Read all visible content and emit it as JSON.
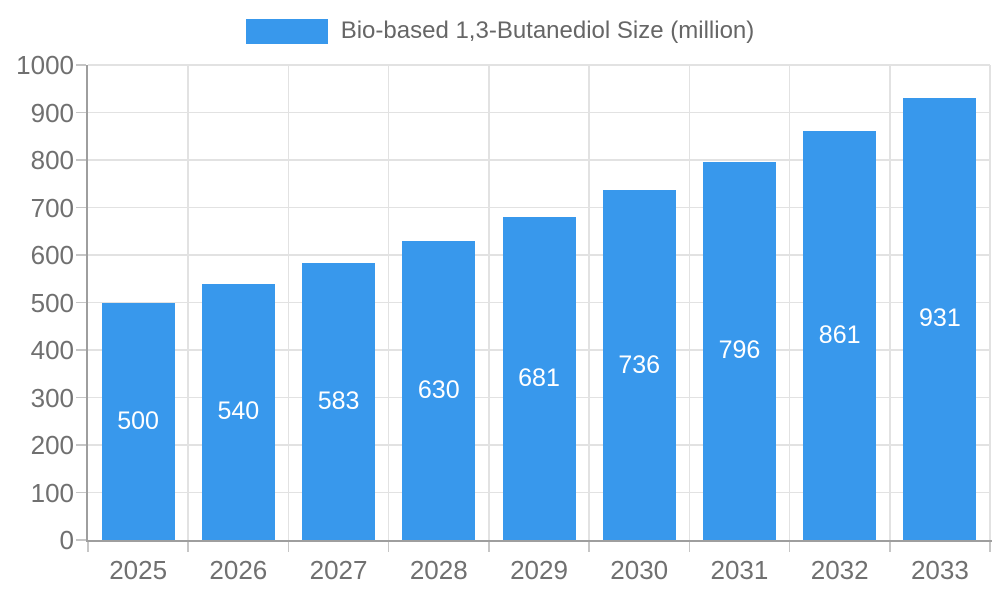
{
  "legend": {
    "label": "Bio-based 1,3-Butanediol Size (million)"
  },
  "chart_data": {
    "type": "bar",
    "title": "Bio-based 1,3-Butanediol Size (million)",
    "categories": [
      "2025",
      "2026",
      "2027",
      "2028",
      "2029",
      "2030",
      "2031",
      "2032",
      "2033"
    ],
    "series": [
      {
        "name": "Bio-based 1,3-Butanediol Size (million)",
        "values": [
          500,
          540,
          583,
          630,
          681,
          736,
          796,
          861,
          931
        ]
      }
    ],
    "xlabel": "",
    "ylabel": "",
    "ylim": [
      0,
      1000
    ],
    "ytick_step": 100,
    "grid": true,
    "legend_position": "top",
    "value_label_position": "inside-center"
  },
  "colors": {
    "bar_fill": "#3898ec",
    "bar_value_text": "#ffffff",
    "axis_line": "#9e9e9e",
    "grid_line": "#e2e2e2",
    "tick_mark": "#c6c6c6",
    "tick_text": "#707070",
    "legend_text": "#666666",
    "background": "#ffffff"
  }
}
